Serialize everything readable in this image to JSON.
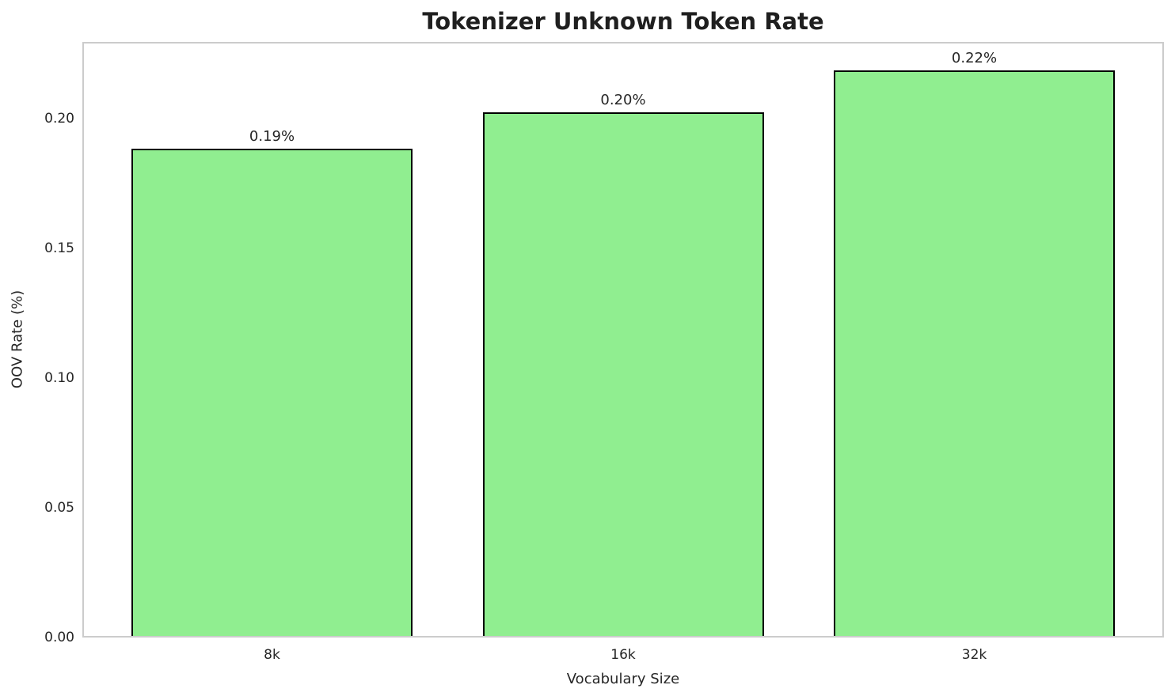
{
  "chart_data": {
    "type": "bar",
    "title": "Tokenizer Unknown Token Rate",
    "xlabel": "Vocabulary Size",
    "ylabel": "OOV Rate (%)",
    "categories": [
      "8k",
      "16k",
      "32k"
    ],
    "values": [
      0.1885,
      0.2025,
      0.2185
    ],
    "bar_labels": [
      "0.19%",
      "0.20%",
      "0.22%"
    ],
    "yticks": [
      0,
      0.05,
      0.1,
      0.15,
      0.2
    ],
    "ytick_labels": [
      "0.00",
      "0.05",
      "0.10",
      "0.15",
      "0.20"
    ],
    "ylim": [
      0,
      0.2295
    ],
    "grid": true,
    "legend": "none",
    "colors": {
      "bar_fill": "#90EE90",
      "bar_edge": "#000000",
      "grid": "#dddddd",
      "spine": "#cccccc",
      "text": "#262626",
      "title": "#1f1f1f",
      "background": "#ffffff"
    }
  }
}
